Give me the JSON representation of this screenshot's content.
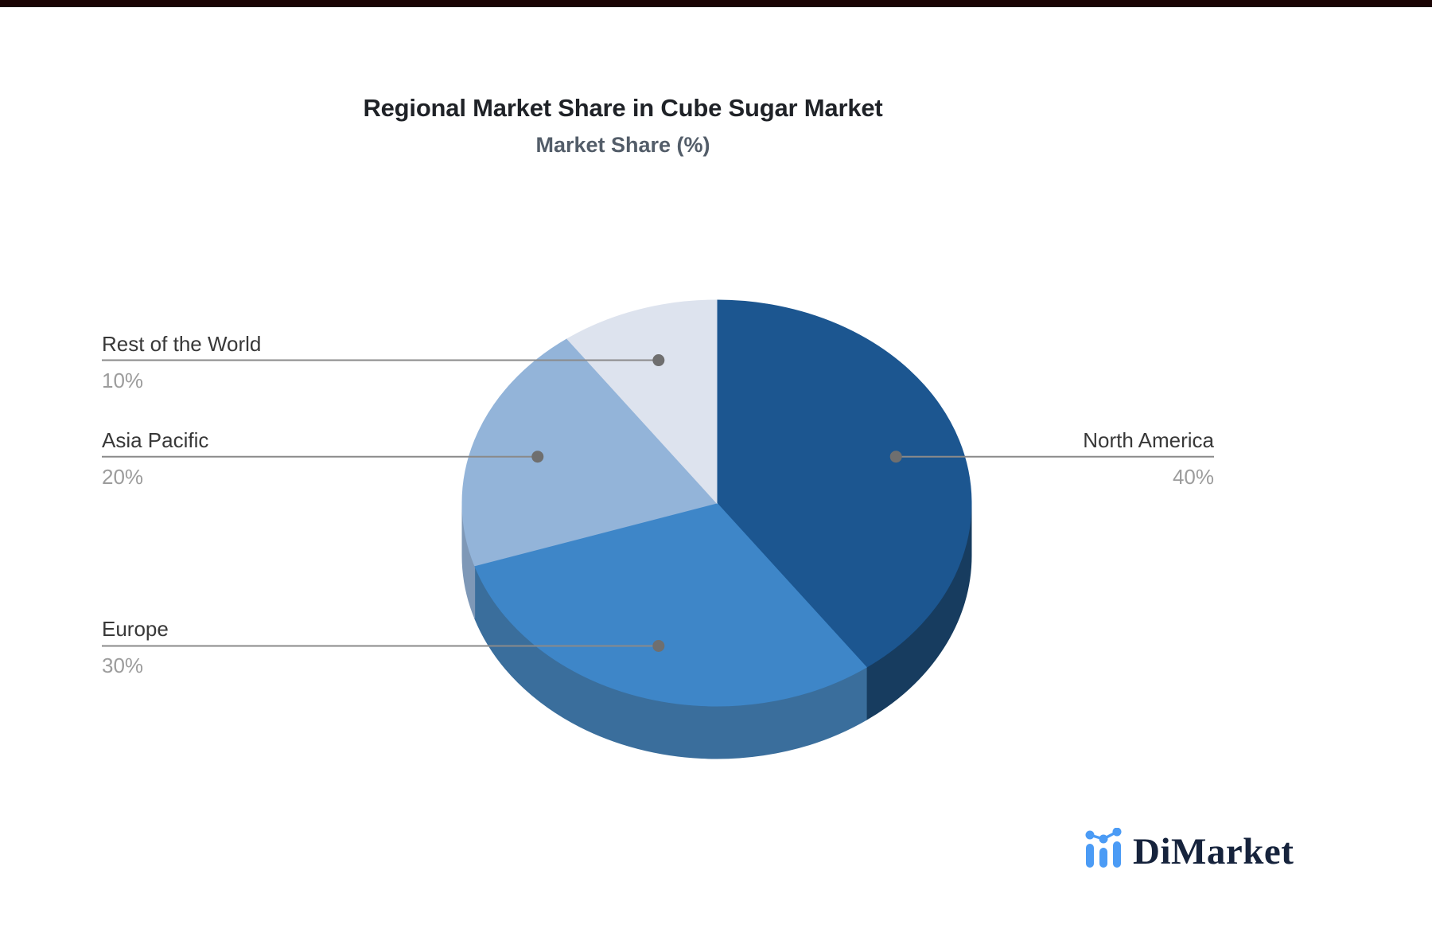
{
  "top_bar_color": "#1a0404",
  "background_color": "#ffffff",
  "chart_data": {
    "type": "pie",
    "title": "Regional Market Share in Cube Sugar Market",
    "subtitle": "Market Share (%)",
    "unit": "%",
    "effect": "3d",
    "direction": "clockwise",
    "start_angle": "12-o'clock",
    "legend": "none",
    "grid": "off",
    "label_style": "external callouts with horizontal leader lines and end dots",
    "slices": [
      {
        "label": "North America",
        "value": 40,
        "pct_label": "40%",
        "color": "#1C5690",
        "side_color": "#173C5F"
      },
      {
        "label": "Europe",
        "value": 30,
        "pct_label": "30%",
        "color": "#3E86C8",
        "side_color": "#3A6E9C"
      },
      {
        "label": "Asia Pacific",
        "value": 20,
        "pct_label": "20%",
        "color": "#93B4D9",
        "side_color": "#7E98B7"
      },
      {
        "label": "Rest of the World",
        "value": 10,
        "pct_label": "10%",
        "color": "#DDE3EE",
        "side_color": "#C2CCDD"
      }
    ],
    "leader_line_color": "#8a8a8a",
    "leader_dot_color": "#6f6f6f"
  },
  "logo": {
    "text": "DiMarket",
    "text_color": "#16233c",
    "icon_color": "#4B9BF5"
  }
}
